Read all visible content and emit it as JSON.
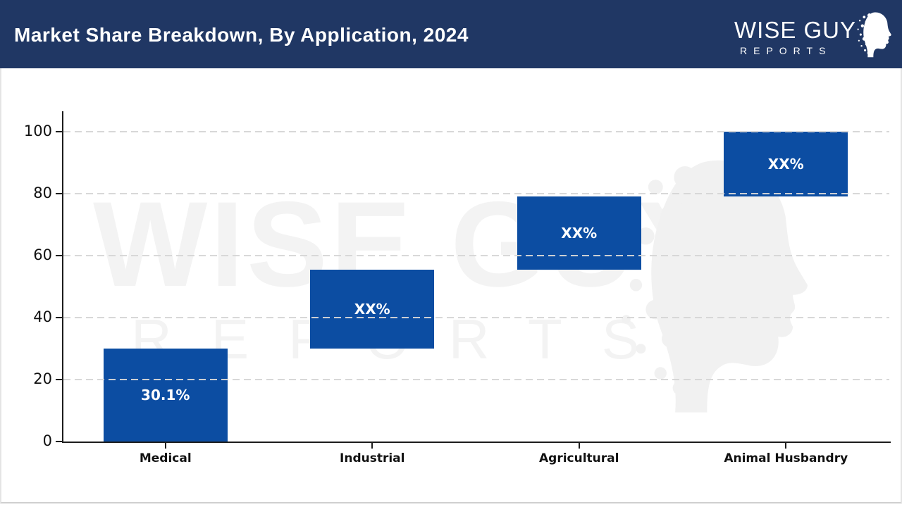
{
  "header": {
    "title": "Market Share Breakdown, By Application, 2024",
    "bg_color": "#203764",
    "logo": {
      "line1": "WISE GUY",
      "line2": "REPORTS"
    }
  },
  "watermark": {
    "line1": "WISE GUY",
    "line2": "REPORTS"
  },
  "chart_data": {
    "type": "bar",
    "subtype": "waterfall",
    "title": "Market Share Breakdown, By Application, 2024",
    "categories": [
      "Medical",
      "Industrial",
      "Agricultural",
      "Animal Husbandry"
    ],
    "series": [
      {
        "name": "Market share (%)",
        "starts": [
          0,
          30.1,
          55.5,
          79.2
        ],
        "ends": [
          30.1,
          55.5,
          79.2,
          100
        ],
        "labels": [
          "30.1%",
          "XX%",
          "XX%",
          "XX%"
        ]
      }
    ],
    "xlabel": "",
    "ylabel": "",
    "ylim": [
      0,
      100
    ],
    "yticks": [
      0,
      20,
      40,
      60,
      80,
      100
    ],
    "grid": {
      "horizontal": true,
      "style": "dashed",
      "color": "#d9d9d9",
      "drawn_over_bars": true
    },
    "legend": "none",
    "bar_color": "#0C4DA2",
    "bar_label_color": "#ffffff",
    "axis_color": "#1c1c1c"
  }
}
